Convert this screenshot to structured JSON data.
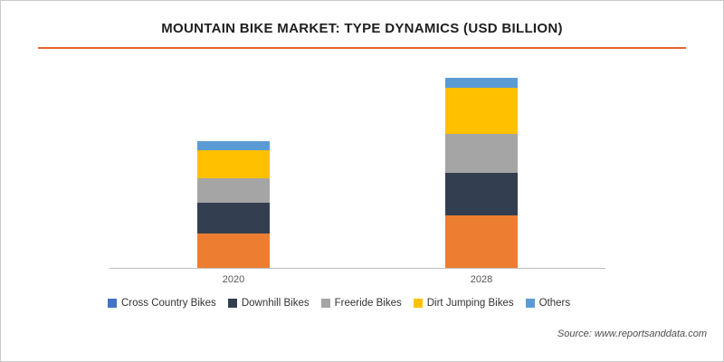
{
  "page": {
    "title": "MOUNTAIN BIKE MARKET: TYPE DYNAMICS (USD BILLION)",
    "source": "Source: www.reportsanddata.com",
    "accent_color": "#e8632c",
    "axis_color": "#bfbfbf"
  },
  "chart_data": {
    "type": "bar",
    "stacked": true,
    "title": "MOUNTAIN BIKE MARKET: TYPE DYNAMICS (USD BILLION)",
    "unit": "USD Billion",
    "categories": [
      "2020",
      "2028"
    ],
    "series": [
      {
        "name": "Cross Country Bikes",
        "values": [
          3.7,
          5.7
        ],
        "bar_color": "#ed7d31",
        "legend_color": "#4472c4"
      },
      {
        "name": "Downhill Bikes",
        "values": [
          3.3,
          4.6
        ],
        "bar_color": "#333f50",
        "legend_color": "#333f50"
      },
      {
        "name": "Freeride Bikes",
        "values": [
          2.7,
          4.2
        ],
        "bar_color": "#a5a5a5",
        "legend_color": "#a5a5a5"
      },
      {
        "name": "Dirt Jumping Bikes",
        "values": [
          3.0,
          5.0
        ],
        "bar_color": "#ffc000",
        "legend_color": "#ffc000"
      },
      {
        "name": "Others",
        "values": [
          1.0,
          1.0
        ],
        "bar_color": "#5b9bd5",
        "legend_color": "#5b9bd5"
      }
    ],
    "xlabel": "",
    "ylabel": "",
    "ylim": [
      0,
      22
    ],
    "grid": false,
    "legend_position": "bottom"
  }
}
